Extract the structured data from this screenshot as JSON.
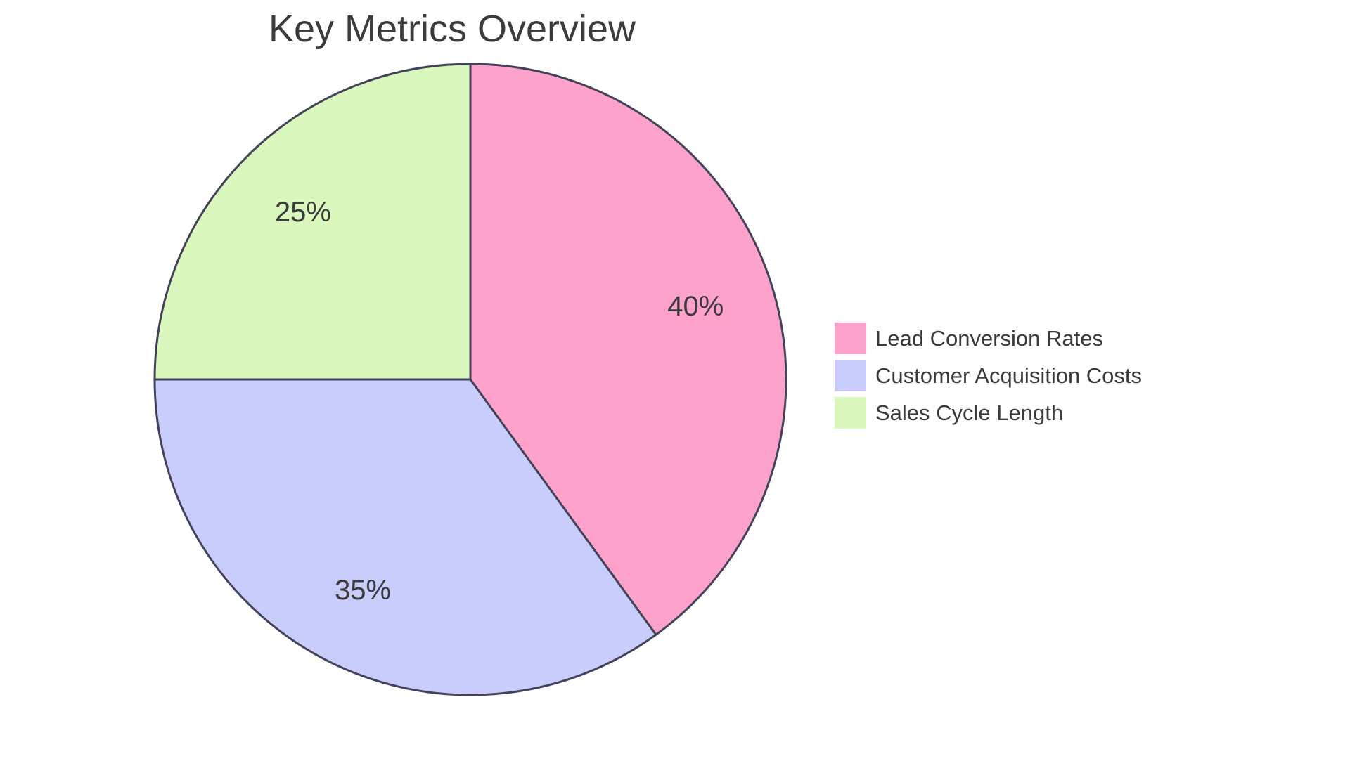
{
  "page": {
    "background_color": "#ffffff"
  },
  "chart_data": {
    "type": "pie",
    "title": "Key Metrics Overview",
    "labels": [
      "Lead Conversion Rates",
      "Customer Acquisition Costs",
      "Sales Cycle Length"
    ],
    "values": [
      40,
      35,
      25
    ],
    "value_labels": [
      "40%",
      "35%",
      "25%"
    ],
    "colors": [
      "#FDA2CB",
      "#C9CDFB",
      "#DAF8BE"
    ],
    "slice_outline_color": "#42435A",
    "text_color": "#3B3B3B",
    "title_color": "#3C3C3C",
    "start_angle": "12-oclock",
    "direction": "clockwise",
    "legend_position": "right",
    "grid": false
  }
}
